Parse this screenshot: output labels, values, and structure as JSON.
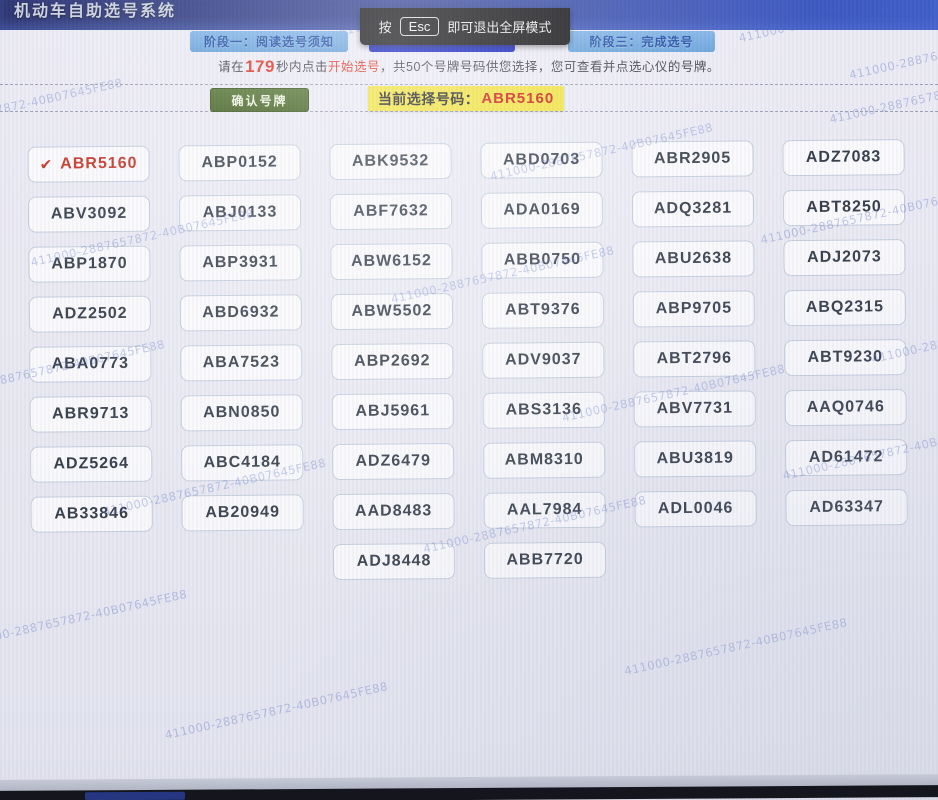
{
  "app": {
    "title": "机动车自助选号系统"
  },
  "esc_toast": {
    "prefix": "按",
    "key": "Esc",
    "suffix": "即可退出全屏模式"
  },
  "stages": {
    "stage1": "阶段一：阅读选号须知",
    "stage3": "阶段三：完成选号"
  },
  "instruction": {
    "p1": "请在",
    "seconds": "179",
    "p2": "秒内点击",
    "link": "开始选号",
    "p3": "，共50个号牌号码供您选择，您可查看并点选心仪的号牌。"
  },
  "actions": {
    "confirm": "确认号牌",
    "current_label": "当前选择号码：",
    "current_value": "ABR5160"
  },
  "watermark": {
    "text": "411000-2887657872-40B07645FE88"
  },
  "selected_plate": "ABR5160",
  "plate_rows": [
    [
      "ABR5160",
      "ABP0152",
      "ABK9532",
      "ABD0703",
      "ABR2905",
      "ADZ7083"
    ],
    [
      "ABV3092",
      "ABJ0133",
      "ABF7632",
      "ADA0169",
      "ADQ3281",
      "ABT8250"
    ],
    [
      "ABP1870",
      "ABP3931",
      "ABW6152",
      "ABB0750",
      "ABU2638",
      "ADJ2073"
    ],
    [
      "ADZ2502",
      "ABD6932",
      "ABW5502",
      "ABT9376",
      "ABP9705",
      "ABQ2315"
    ],
    [
      "ABA0773",
      "ABA7523",
      "ABP2692",
      "ADV9037",
      "ABT2796",
      "ABT9230"
    ],
    [
      "ABR9713",
      "ABN0850",
      "ABJ5961",
      "ABS3136",
      "ABV7731",
      "AAQ0746"
    ],
    [
      "ADZ5264",
      "ABC4184",
      "ADZ6479",
      "ABM8310",
      "ABU3819",
      "AD61472"
    ],
    [
      "AB33846",
      "AB20949",
      "AAD8483",
      "AAL7984",
      "ADL0046",
      "AD63347"
    ],
    [
      null,
      null,
      "ADJ8448",
      "ABB7720",
      null,
      null
    ]
  ],
  "colors": {
    "titlebar_navy": "#2c3c8e",
    "stage_blue": "#72a9e0",
    "stage_active_blue": "#1726d8",
    "accent_red": "#e03020",
    "confirm_green": "#47661f",
    "selection_yellow": "#f2e33e",
    "plate_text": "#343c49",
    "selected_red": "#c23425",
    "watermark_blue": "#5f73c8"
  }
}
